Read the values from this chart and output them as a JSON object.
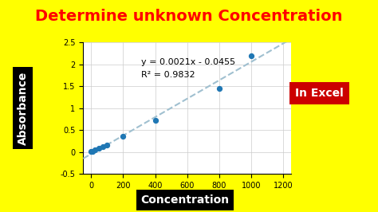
{
  "title": "Determine unknown Concentration",
  "title_color": "#FF0000",
  "title_bg": "#FFFF00",
  "xlabel": "Concentration",
  "xlabel_bg": "#000000",
  "xlabel_color": "#FFFFFF",
  "ylabel": "Absorbance",
  "ylabel_bg": "#000000",
  "ylabel_color": "#FFFFFF",
  "scatter_x": [
    0,
    10,
    25,
    50,
    75,
    100,
    200,
    400,
    800,
    1000
  ],
  "scatter_y": [
    0.01,
    0.02,
    0.04,
    0.08,
    0.12,
    0.16,
    0.35,
    0.72,
    1.44,
    2.19
  ],
  "scatter_color": "#1F77B4",
  "trendline_color": "#A0C0D0",
  "equation": "y = 0.0021x - 0.0455",
  "r_squared": "R² = 0.9832",
  "annotation_color": "#000000",
  "xlim": [
    -50,
    1250
  ],
  "ylim": [
    -0.5,
    2.5
  ],
  "xticks": [
    0,
    200,
    400,
    600,
    800,
    1000,
    1200
  ],
  "yticks": [
    -0.5,
    0,
    0.5,
    1.0,
    1.5,
    2.0,
    2.5
  ],
  "ytick_labels": [
    "-0.5",
    "0",
    "0.5",
    "1",
    "1.5",
    "2",
    "2.5"
  ],
  "grid": true,
  "bg_color": "#FFFFFF",
  "fig_bg": "#FFFF00",
  "in_excel_text": "In Excel",
  "in_excel_bg": "#CC0000",
  "in_excel_color": "#FFFFFF",
  "slope": 0.0021,
  "intercept": -0.0455
}
